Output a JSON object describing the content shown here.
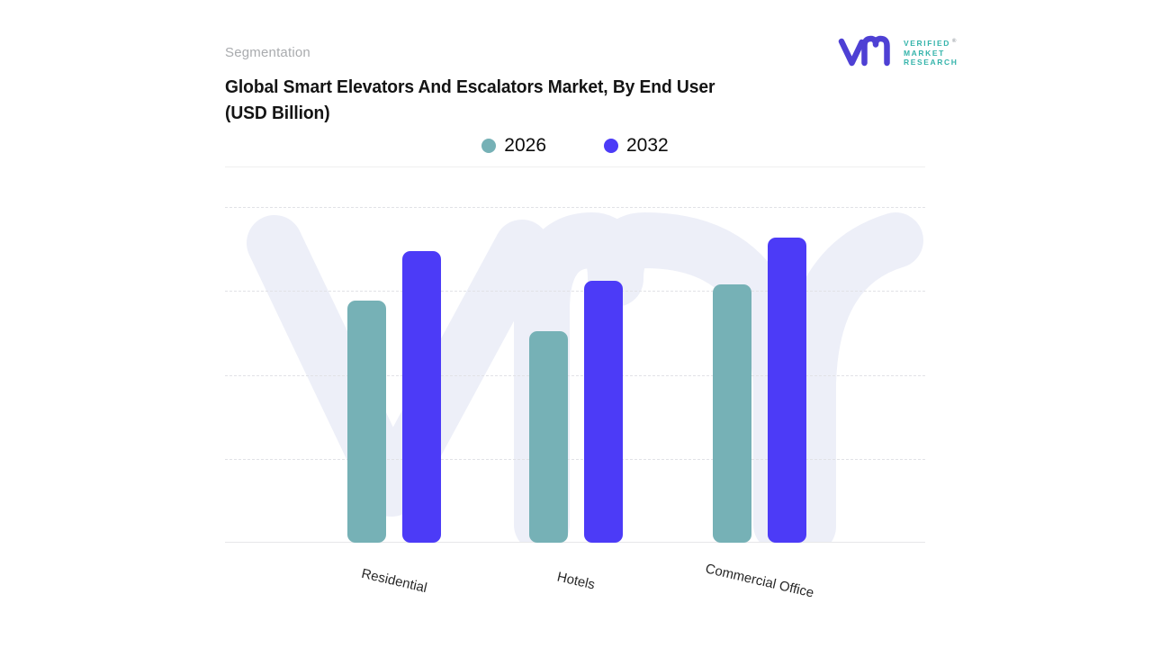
{
  "header": {
    "eyebrow": "Segmentation",
    "title_line1": "Global Smart Elevators And Escalators Market, By End User",
    "title_line2": "(USD Billion)"
  },
  "logo": {
    "text_lines": [
      "VERIFIED",
      "MARKET",
      "RESEARCH"
    ],
    "registered_symbol": "®",
    "mark_color": "#4e40d4",
    "text_color": "#35b4ab"
  },
  "legend": [
    {
      "label": "2026",
      "color": "#76b1b6"
    },
    {
      "label": "2032",
      "color": "#4c3bf7"
    }
  ],
  "chart_data": {
    "type": "bar",
    "title": "Global Smart Elevators And Escalators Market, By End User (USD Billion)",
    "xlabel": "",
    "ylabel": "",
    "categories": [
      "Residential",
      "Hotels",
      "Commercial Office"
    ],
    "series": [
      {
        "name": "2026",
        "color": "#76b1b6",
        "values": [
          72,
          63,
          77
        ]
      },
      {
        "name": "2032",
        "color": "#4c3bf7",
        "values": [
          87,
          78,
          91
        ]
      }
    ],
    "value_note": "y-axis has no tick labels; values are relative bar heights where the top dashed gridline = 100",
    "y_axis_tick_labels_visible": false,
    "ylim": [
      0,
      100
    ],
    "gridlines": {
      "style": "dashed",
      "values": [
        25,
        50,
        75,
        100
      ]
    },
    "legend_position": "top-center",
    "watermark": "vmr logo, very light lavender, behind bars",
    "colors": {
      "watermark": "#edeff8",
      "gridline": "#e1e2e6",
      "axis": "#e7e7e9"
    }
  }
}
